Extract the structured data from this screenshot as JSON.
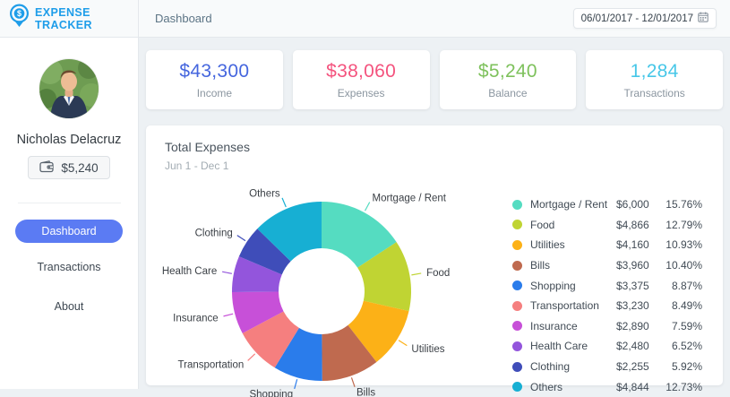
{
  "app": {
    "logo_text": "EXPENSE TRACKER"
  },
  "topbar": {
    "title": "Dashboard",
    "date_range": "06/01/2017 - 12/01/2017"
  },
  "sidebar": {
    "user_name": "Nicholas Delacruz",
    "wallet_balance": "$5,240",
    "nav": [
      {
        "label": "Dashboard",
        "active": true
      },
      {
        "label": "Transactions",
        "active": false
      },
      {
        "label": "About",
        "active": false
      }
    ]
  },
  "stats": [
    {
      "value": "$43,300",
      "label": "Income",
      "color": "#4566DE"
    },
    {
      "value": "$38,060",
      "label": "Expenses",
      "color": "#F4537E"
    },
    {
      "value": "$5,240",
      "label": "Balance",
      "color": "#7EC15C"
    },
    {
      "value": "1,284",
      "label": "Transactions",
      "color": "#47C7E8"
    }
  ],
  "expenses_card": {
    "title": "Total Expenses",
    "subtitle": "Jun 1 - Dec 1"
  },
  "colors": {
    "brand_blue": "#1E9DE9",
    "accent_blue": "#5B7BF3"
  },
  "chart_data": {
    "type": "pie",
    "title": "Total Expenses",
    "subtitle": "Jun 1 - Dec 1",
    "donut": true,
    "start_angle_deg": -90,
    "clockwise": true,
    "legend_position": "right",
    "segments": [
      {
        "label": "Mortgage / Rent",
        "amount": "$6,000",
        "value": 6000,
        "pct": "15.76%",
        "color": "#55DCC1"
      },
      {
        "label": "Food",
        "amount": "$4,866",
        "value": 4866,
        "pct": "12.79%",
        "color": "#C0D433"
      },
      {
        "label": "Utilities",
        "amount": "$4,160",
        "value": 4160,
        "pct": "10.93%",
        "color": "#FCB117"
      },
      {
        "label": "Bills",
        "amount": "$3,960",
        "value": 3960,
        "pct": "10.40%",
        "color": "#BF6A4F"
      },
      {
        "label": "Shopping",
        "amount": "$3,375",
        "value": 3375,
        "pct": "8.87%",
        "color": "#2A7CEB"
      },
      {
        "label": "Transportation",
        "amount": "$3,230",
        "value": 3230,
        "pct": "8.49%",
        "color": "#F57F7F"
      },
      {
        "label": "Insurance",
        "amount": "$2,890",
        "value": 2890,
        "pct": "7.59%",
        "color": "#C750D8"
      },
      {
        "label": "Health Care",
        "amount": "$2,480",
        "value": 2480,
        "pct": "6.52%",
        "color": "#9355DC"
      },
      {
        "label": "Clothing",
        "amount": "$2,255",
        "value": 2255,
        "pct": "5.92%",
        "color": "#3F4DB9"
      },
      {
        "label": "Others",
        "amount": "$4,844",
        "value": 4844,
        "pct": "12.73%",
        "color": "#17AFD3"
      }
    ]
  }
}
